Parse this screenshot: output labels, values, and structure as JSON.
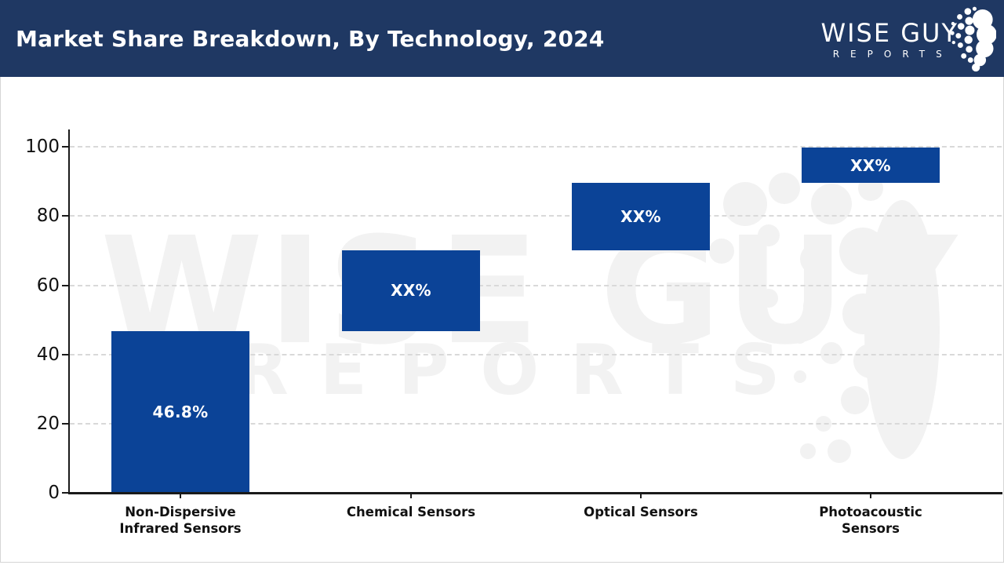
{
  "header": {
    "title": "Market Share Breakdown, By Technology, 2024"
  },
  "logo": {
    "line1": "WISE GUY",
    "line2": "REPORTS"
  },
  "watermark": {
    "line1": "WISE GUY",
    "line2": "REPORTS"
  },
  "chart_data": {
    "type": "bar",
    "variant": "floating stacked segments (waterfall-style share breakdown)",
    "title": "Market Share Breakdown, By Technology, 2024",
    "xlabel": "",
    "ylabel": "",
    "ylim": [
      0,
      104
    ],
    "yticks": [
      0,
      20,
      40,
      60,
      80,
      100
    ],
    "grid": "dashed horizontal gridlines",
    "bar_color": "#0b4397",
    "value_label_color": "#ffffff",
    "categories": [
      "Non-Dispersive Infrared Sensors",
      "Chemical Sensors",
      "Optical Sensors",
      "Photoacoustic Sensors"
    ],
    "segments": [
      {
        "category": "Non-Dispersive Infrared Sensors",
        "start": 0,
        "end": 46.8,
        "label": "46.8%"
      },
      {
        "category": "Chemical Sensors",
        "start": 46.8,
        "end": 70.2,
        "label": "XX%"
      },
      {
        "category": "Optical Sensors",
        "start": 70.2,
        "end": 89.6,
        "label": "XX%"
      },
      {
        "category": "Photoacoustic Sensors",
        "start": 89.6,
        "end": 99.8,
        "label": "XX%"
      }
    ]
  },
  "colors": {
    "header_bg": "#1f3863",
    "bar_blue": "#0b4397",
    "gridline": "#d9d9d9",
    "axis": "#1a1a1a",
    "frame": "#d5d5d5",
    "watermark": "#f2f2f2"
  }
}
